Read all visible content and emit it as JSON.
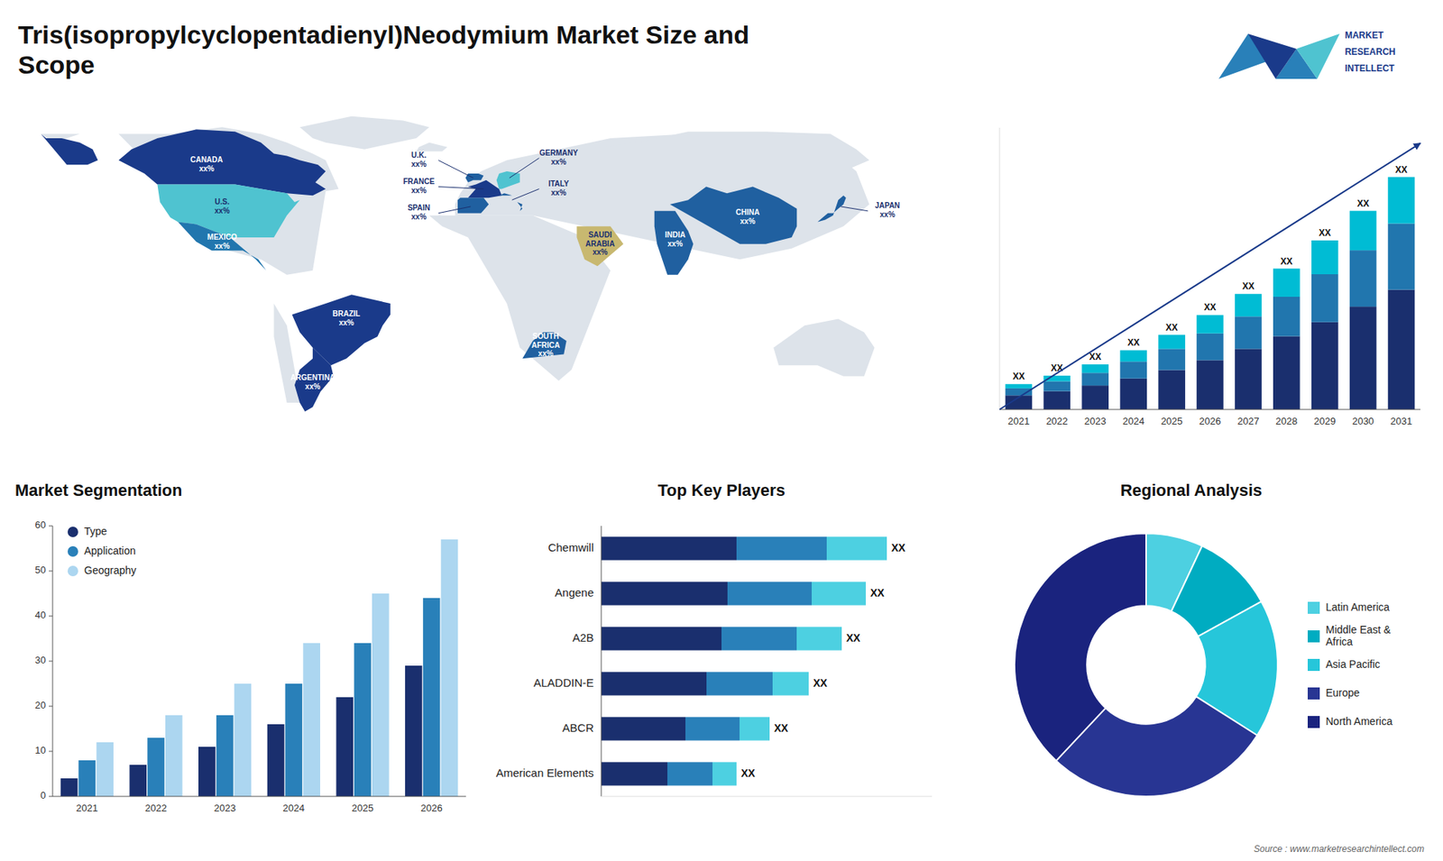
{
  "title": "Tris(isopropylcyclopentadienyl)Neodymium Market Size and\nScope",
  "annotations": [
    "MARKET",
    "RESEARCH",
    "INTELLECT",
    "Source : www.marketresearchintellect.com"
  ],
  "chart_data": [
    {
      "type": "map",
      "categories": [
        "CANADA",
        "U.S.",
        "MEXICO",
        "BRAZIL",
        "ARGENTINA",
        "U.K.",
        "FRANCE",
        "SPAIN",
        "GERMANY",
        "ITALY",
        "SAUDI\nARABIA",
        "SOUTH\nAFRICA",
        "CHINA",
        "INDIA",
        "JAPAN"
      ],
      "annotations": [
        "xx%",
        "xx%",
        "xx%",
        "xx%",
        "xx%",
        "xx%",
        "xx%",
        "xx%",
        "xx%",
        "xx%",
        "xx%",
        "xx%",
        "xx%",
        "xx%",
        "xx%"
      ],
      "colors": [
        "#1a3a8a",
        "#4fc3d0",
        "#2176ae",
        "#1a3a8a",
        "#1a3a8a",
        "#2060a0",
        "#1a3a8a",
        "#2060a0",
        "#4fc3d0",
        "#2060a0",
        "#c8b870",
        "#2060a0",
        "#2060a0",
        "#2060a0",
        "#2060a0"
      ]
    },
    {
      "type": "bar",
      "stacked": true,
      "categories": [
        "2021",
        "2022",
        "2023",
        "2024",
        "2025",
        "2026",
        "2027",
        "2028",
        "2029",
        "2030",
        "2031"
      ],
      "series": [
        {
          "color": "#1a2f6e",
          "values": [
            1.0,
            1.3,
            1.7,
            2.2,
            2.8,
            3.5,
            4.3,
            5.2,
            6.2,
            7.3,
            8.5
          ]
        },
        {
          "color": "#2176ae",
          "values": [
            0.5,
            0.7,
            0.9,
            1.2,
            1.5,
            1.9,
            2.3,
            2.8,
            3.4,
            4.0,
            4.7
          ]
        },
        {
          "color": "#00bcd4",
          "values": [
            0.3,
            0.4,
            0.6,
            0.8,
            1.0,
            1.3,
            1.6,
            2.0,
            2.4,
            2.8,
            3.3
          ]
        }
      ],
      "ylim": [
        0,
        20
      ],
      "tick_labels": "x",
      "grid": false,
      "annotations": [
        "XX",
        "XX",
        "XX",
        "XX",
        "XX",
        "XX",
        "XX",
        "XX",
        "XX",
        "XX",
        "XX"
      ]
    },
    {
      "type": "bar",
      "title": "Market Segmentation",
      "categories": [
        "2021",
        "2022",
        "2023",
        "2024",
        "2025",
        "2026"
      ],
      "series": [
        {
          "name": "Type",
          "color": "#1a2f6e",
          "values": [
            4,
            7,
            11,
            16,
            22,
            29
          ]
        },
        {
          "name": "Application",
          "color": "#2980b9",
          "values": [
            8,
            13,
            18,
            25,
            34,
            44
          ]
        },
        {
          "name": "Geography",
          "color": "#acd6f0",
          "values": [
            12,
            18,
            25,
            34,
            45,
            57
          ]
        }
      ],
      "ylim": [
        0,
        60
      ],
      "yticks": [
        0,
        10,
        20,
        30,
        40,
        50,
        60
      ],
      "grid": false,
      "legend": "upper left"
    },
    {
      "type": "bar",
      "orientation": "horizontal",
      "stacked": true,
      "title": "Top Key Players",
      "categories": [
        "Chemwill",
        "Angene",
        "A2B",
        "ALADDIN-E",
        "ABCR",
        "American Elements"
      ],
      "series": [
        {
          "color": "#1a2f6e",
          "values": [
            4.5,
            4.2,
            4.0,
            3.5,
            2.8,
            2.2
          ]
        },
        {
          "color": "#2980b9",
          "values": [
            3.0,
            2.8,
            2.5,
            2.2,
            1.8,
            1.5
          ]
        },
        {
          "color": "#4dd0e1",
          "values": [
            2.0,
            1.8,
            1.5,
            1.2,
            1.0,
            0.8
          ]
        }
      ],
      "xlim": [
        0,
        11
      ],
      "tick_labels": "y",
      "grid": false,
      "annotations": [
        "XX",
        "XX",
        "XX",
        "XX",
        "XX",
        "XX"
      ]
    },
    {
      "type": "donut",
      "title": "Regional Analysis",
      "categories": [
        "Latin America",
        "Middle East &\nAfrica",
        "Asia Pacific",
        "Europe",
        "North America"
      ],
      "values": [
        0.07,
        0.1,
        0.17,
        0.28,
        0.38
      ],
      "colors": [
        "#4dd0e1",
        "#00acc1",
        "#26c6da",
        "#283593",
        "#1a237e"
      ],
      "legend": "right"
    }
  ]
}
